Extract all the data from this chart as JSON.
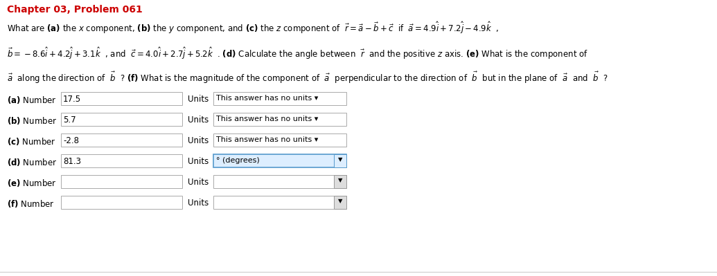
{
  "title": "Chapter 03, Problem 061",
  "title_color": "#cc0000",
  "bg_color": "#ffffff",
  "answers": [
    {
      "label": "(a) Number",
      "value": "17.5",
      "units_value": "This answer has no units ▾",
      "highlight": false
    },
    {
      "label": "(b) Number",
      "value": "5.7",
      "units_value": "This answer has no units ▾",
      "highlight": false
    },
    {
      "label": "(c) Number",
      "value": "-2.8",
      "units_value": "This answer has no units ▾",
      "highlight": false
    },
    {
      "label": "(d) Number",
      "value": "81.3",
      "units_value": "° (degrees)",
      "highlight": true
    },
    {
      "label": "(e) Number",
      "value": "",
      "units_value": "",
      "highlight": false
    },
    {
      "label": "(f) Number",
      "value": "",
      "units_value": "",
      "highlight": false
    }
  ],
  "font_size_title": 10,
  "font_size_body": 8.5,
  "font_size_answer": 8.5
}
